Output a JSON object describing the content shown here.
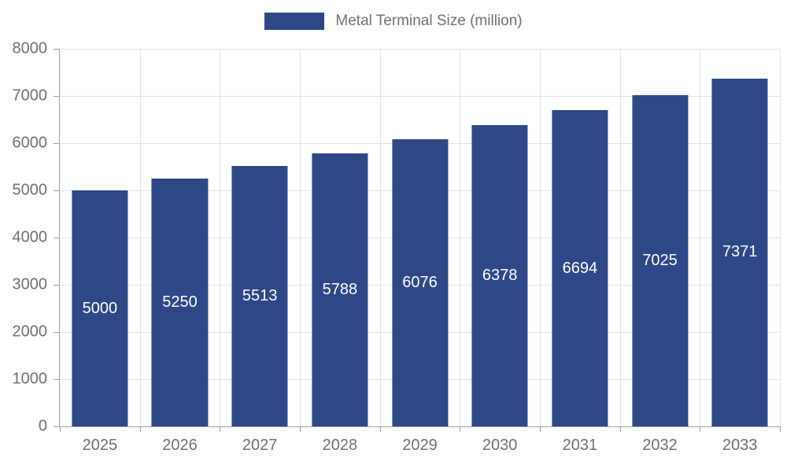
{
  "chart_data": {
    "type": "bar",
    "title": "Metal Terminal Size (million)",
    "categories": [
      "2025",
      "2026",
      "2027",
      "2028",
      "2029",
      "2030",
      "2031",
      "2032",
      "2033"
    ],
    "values": [
      5000,
      5250,
      5513,
      5788,
      6076,
      6378,
      6694,
      7025,
      7371
    ],
    "xlabel": "",
    "ylabel": "",
    "ylim": [
      0,
      8000
    ],
    "ytick_step": 1000,
    "grid": true,
    "legend_position": "top",
    "bar_color": "#2E4786",
    "value_label_color": "#FFFFFF",
    "axis_text_color": "#6E7079"
  }
}
